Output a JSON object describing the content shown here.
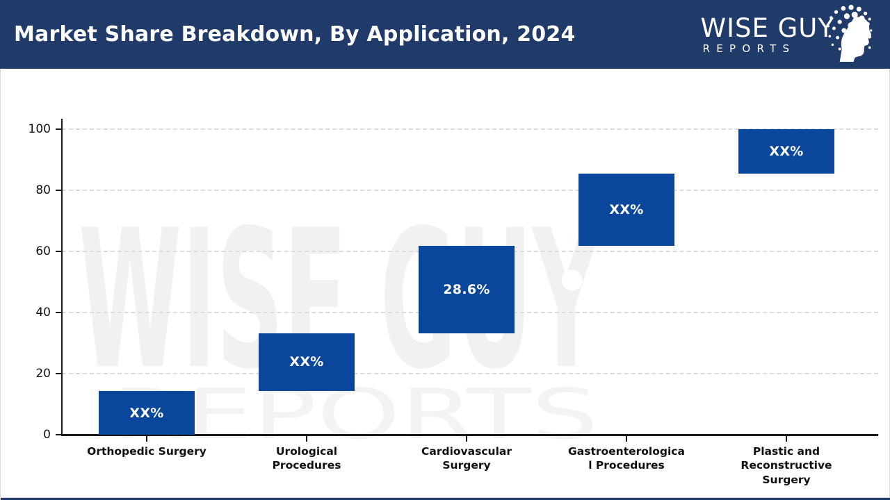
{
  "header": {
    "title": "Market Share Breakdown, By Application, 2024",
    "logo": {
      "line1": "WISE GUY",
      "line2": "REPORTS"
    }
  },
  "watermark": {
    "line1": "WISE GUY",
    "line2": "REPORTS"
  },
  "colors": {
    "header_bg": "#203a69",
    "bar": "#0a479c",
    "grid": "#dcdcdc",
    "axis": "#1a1a1a",
    "watermark": "#f1f1f1",
    "value_label": "#ffffff"
  },
  "chart_data": {
    "type": "bar",
    "subtype": "waterfall",
    "title": "Market Share Breakdown, By Application, 2024",
    "xlabel": "",
    "ylabel": "",
    "ylim": [
      0,
      105
    ],
    "y_ticks": [
      0,
      20,
      40,
      60,
      80,
      100
    ],
    "grid": "horizontal-dashed",
    "legend": "none",
    "categories": [
      "Orthopedic Surgery",
      "Urological Procedures",
      "Cardiovascular Surgery",
      "Gastroenterological Procedures",
      "Plastic and Reconstructive Surgery"
    ],
    "segments": [
      {
        "category": "Orthopedic Surgery",
        "label_lines": [
          "Orthopedic Surgery"
        ],
        "start": 0,
        "end": 14.3,
        "value": 14.3,
        "value_label": "XX%"
      },
      {
        "category": "Urological Procedures",
        "label_lines": [
          "Urological",
          "Procedures"
        ],
        "start": 14.3,
        "end": 33.2,
        "value": 18.9,
        "value_label": "XX%"
      },
      {
        "category": "Cardiovascular Surgery",
        "label_lines": [
          "Cardiovascular",
          "Surgery"
        ],
        "start": 33.2,
        "end": 61.8,
        "value": 28.6,
        "value_label": "28.6%"
      },
      {
        "category": "Gastroenterological Procedures",
        "label_lines": [
          "Gastroenterologica",
          "l Procedures"
        ],
        "start": 61.8,
        "end": 85.5,
        "value": 23.7,
        "value_label": "XX%"
      },
      {
        "category": "Plastic and Reconstructive Surgery",
        "label_lines": [
          "Plastic and",
          "Reconstructive",
          "Surgery"
        ],
        "start": 85.5,
        "end": 100,
        "value": 14.5,
        "value_label": "XX%"
      }
    ]
  }
}
